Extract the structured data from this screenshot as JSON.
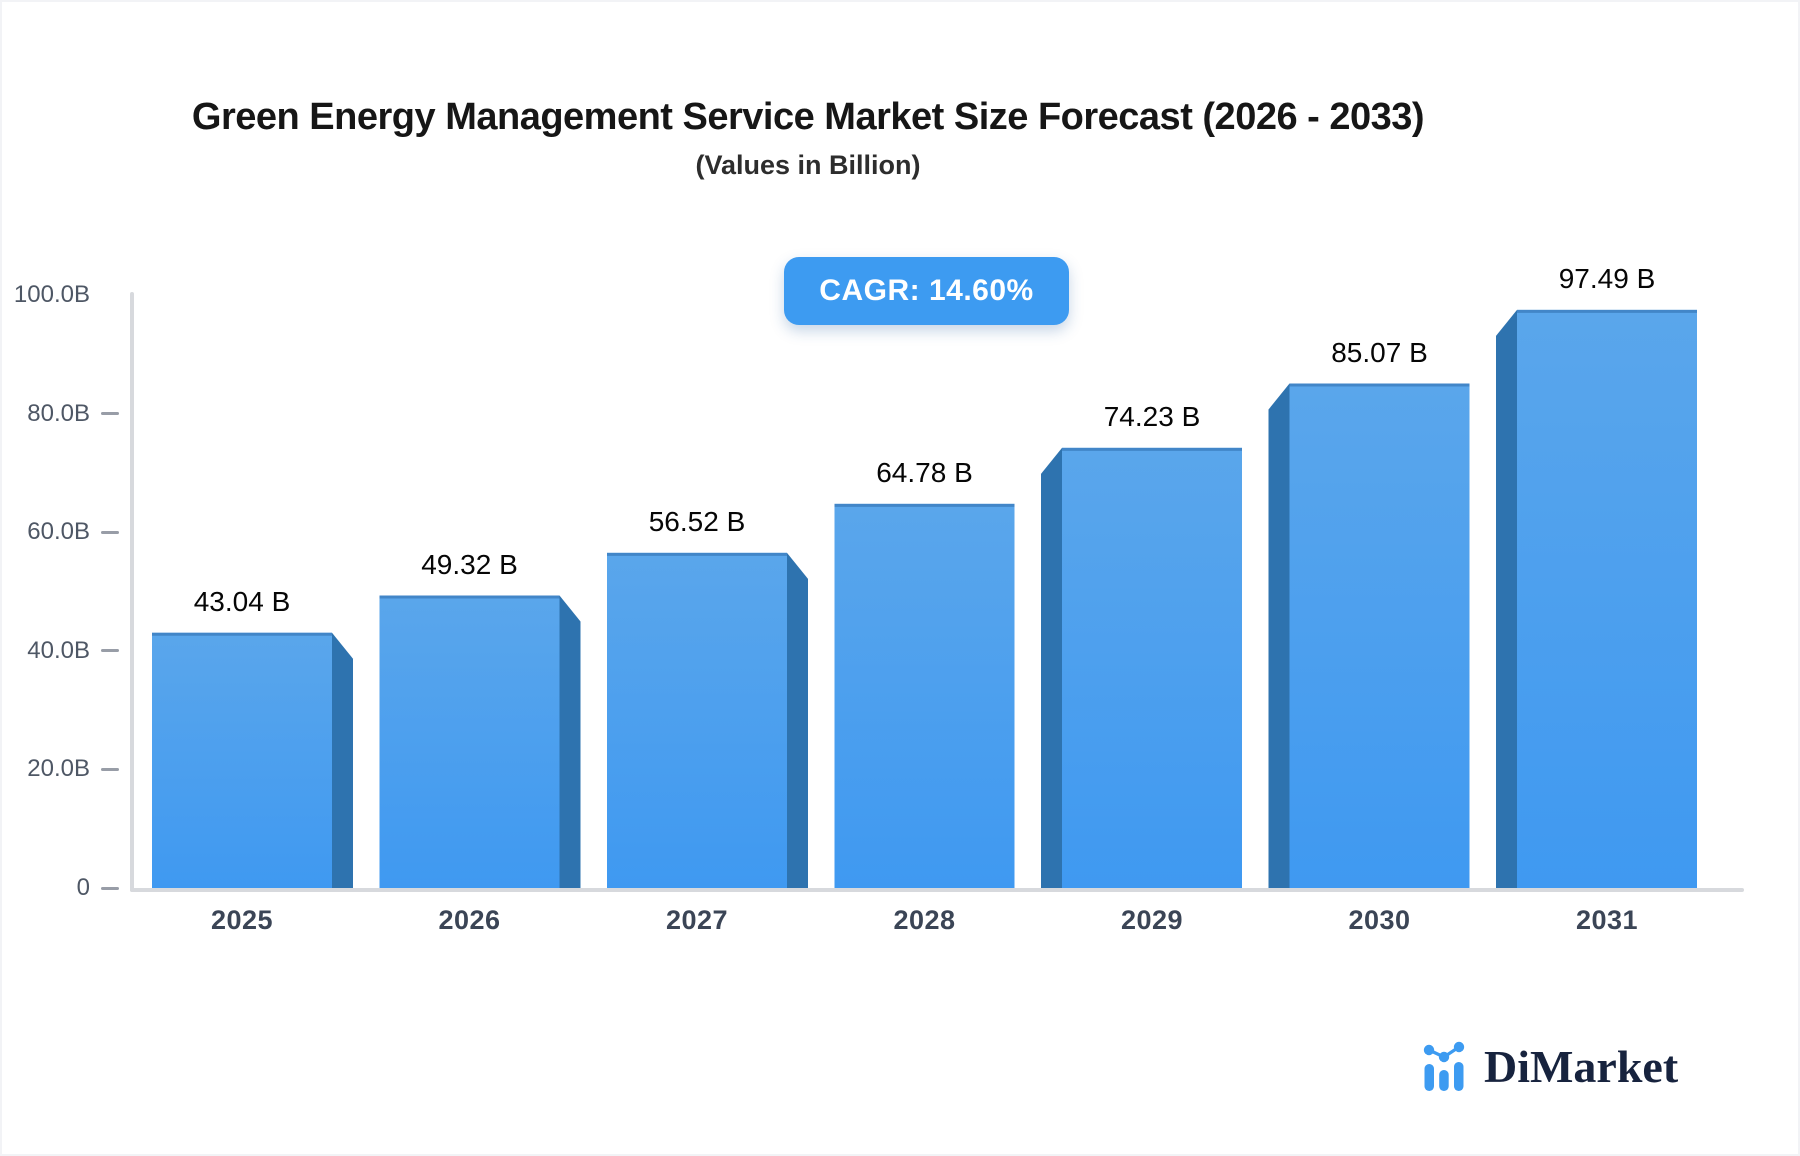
{
  "header": {
    "cagr_badge": "CAGR: 14.60%"
  },
  "brand": {
    "name": "DiMarket",
    "icon": "bar-line-chart-icon"
  },
  "colors": {
    "accent_blue": "#3D9BF1",
    "bar_face_top": "#5AA6EB",
    "bar_face_bottom": "#3F99F1",
    "bar_side": "#2E73AF",
    "bar_top_edge": "#4286C8",
    "axis_line": "#D7D9DD",
    "tick_mark": "#989DA7",
    "logo_navy": "#17233E"
  },
  "chart_data": {
    "type": "bar",
    "style": "3d-perspective-bars",
    "title": "Green Energy Management Service Market Size Forecast (2026 - 2033)",
    "subtitle": "(Values in Billion)",
    "categories": [
      "2025",
      "2026",
      "2027",
      "2028",
      "2029",
      "2030",
      "2031"
    ],
    "values": [
      43.04,
      49.32,
      56.52,
      64.78,
      74.23,
      85.07,
      97.49
    ],
    "value_labels": [
      "43.04 B",
      "49.32 B",
      "56.52 B",
      "64.78 B",
      "74.23 B",
      "85.07 B",
      "97.49 B"
    ],
    "unit": "Billion",
    "ylim": [
      0,
      100
    ],
    "y_ticks": [
      {
        "label": "100.0B",
        "value": 100
      },
      {
        "label": "80.0B",
        "value": 80
      },
      {
        "label": "60.0B",
        "value": 60
      },
      {
        "label": "40.0B",
        "value": 40
      },
      {
        "label": "20.0B",
        "value": 20
      },
      {
        "label": "0",
        "value": 0
      }
    ],
    "grid": false,
    "legend": "none",
    "annotations": [
      "CAGR: 14.60%"
    ]
  }
}
